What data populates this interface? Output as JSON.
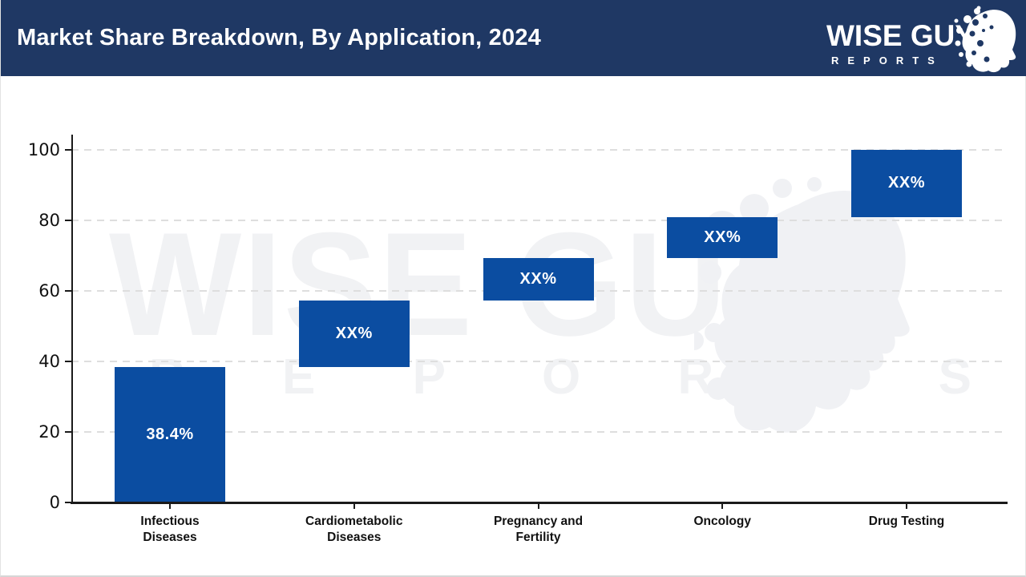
{
  "header": {
    "title": "Market Share Breakdown, By Application, 2024",
    "bg_color": "#1f3864",
    "logo": {
      "line1": "WISE GUY",
      "line2": "REPORTS"
    }
  },
  "watermark": {
    "line1": "WISE GUY",
    "line2": "REPORTS"
  },
  "chart_data": {
    "type": "bar",
    "subtype": "waterfall",
    "title": "Market Share Breakdown, By Application, 2024",
    "xlabel": "",
    "ylabel": "",
    "ylim": [
      0,
      104
    ],
    "yticks": [
      0,
      20,
      40,
      60,
      80,
      100
    ],
    "grid": "horizontal-dashed",
    "legend": "none",
    "bar_color": "#0b4da1",
    "value_label_color": "#ffffff",
    "categories": [
      "Infectious Diseases",
      "Cardiometabolic Diseases",
      "Pregnancy and Fertility",
      "Oncology",
      "Drug Testing"
    ],
    "category_lines": [
      [
        "Infectious",
        "Diseases"
      ],
      [
        "Cardiometabolic",
        "Diseases"
      ],
      [
        "Pregnancy and",
        "Fertility"
      ],
      [
        "Oncology"
      ],
      [
        "Drug Testing"
      ]
    ],
    "segments": [
      {
        "category": "Infectious Diseases",
        "start": 0,
        "end": 38.4,
        "value_label": "38.4%"
      },
      {
        "category": "Cardiometabolic Diseases",
        "start": 38.4,
        "end": 57.3,
        "value_label": "XX%"
      },
      {
        "category": "Pregnancy and Fertility",
        "start": 57.3,
        "end": 69.3,
        "value_label": "XX%"
      },
      {
        "category": "Oncology",
        "start": 69.3,
        "end": 81.0,
        "value_label": "XX%"
      },
      {
        "category": "Drug Testing",
        "start": 81.0,
        "end": 100.0,
        "value_label": "XX%"
      }
    ]
  }
}
